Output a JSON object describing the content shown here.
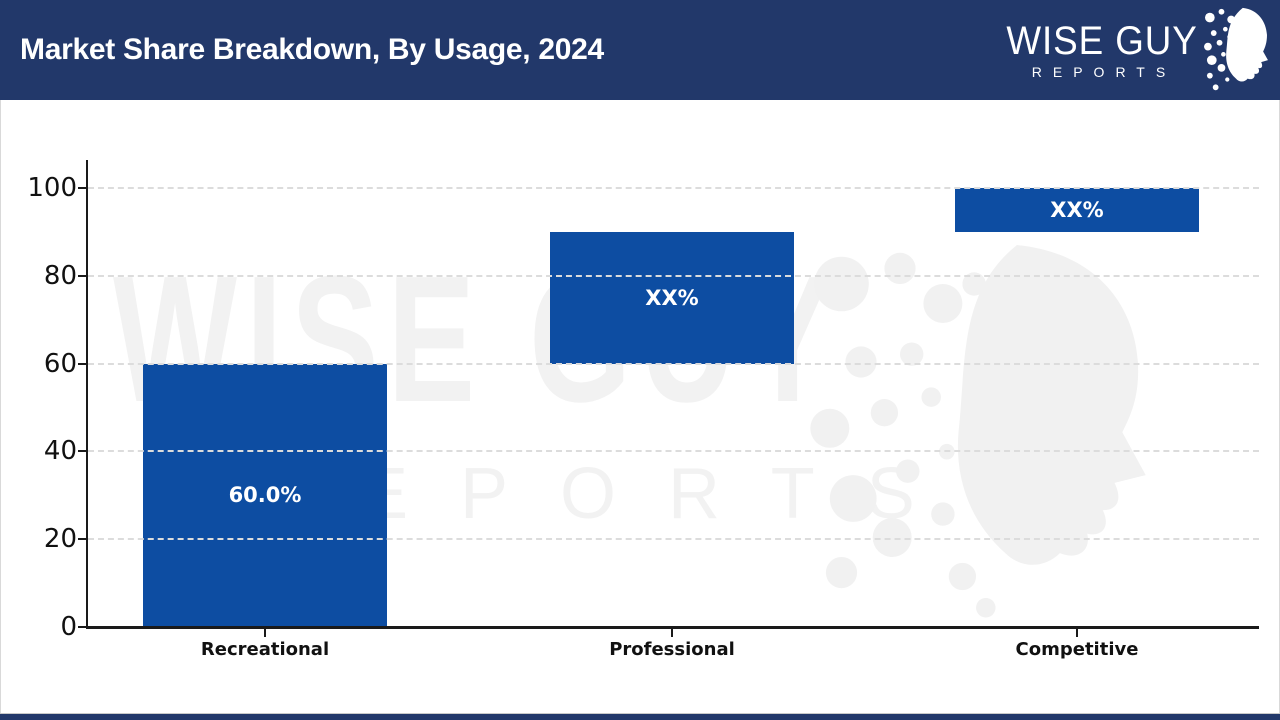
{
  "header": {
    "title": "Market Share Breakdown, By Usage, 2024",
    "logo": {
      "name": "WISE GUY",
      "subtitle": "REPORTS"
    }
  },
  "watermark": {
    "line1": "WISE GUY",
    "line2": "REPORTS"
  },
  "colors": {
    "header_bg": "#22386a",
    "bar": "#0d4da2",
    "bar_label": "#ffffff",
    "axis": "#1a1a1a",
    "grid": "#dcdcdc",
    "tick_text": "#111111",
    "watermark": "#f2f2f2"
  },
  "chart_data": {
    "type": "bar",
    "subtype": "waterfall",
    "title": "Market Share Breakdown, By Usage, 2024",
    "categories": [
      "Recreational",
      "Professional",
      "Competitive"
    ],
    "segments": [
      {
        "category": "Recreational",
        "start": 0,
        "end": 60,
        "label": "60.0%"
      },
      {
        "category": "Professional",
        "start": 60,
        "end": 90,
        "label": "XX%"
      },
      {
        "category": "Competitive",
        "start": 90,
        "end": 100,
        "label": "XX%"
      }
    ],
    "series": [
      {
        "name": "Market Share (%)",
        "values": [
          60,
          30,
          10
        ]
      }
    ],
    "yticks": [
      0,
      20,
      40,
      60,
      80,
      100
    ],
    "ylim": [
      0,
      106
    ],
    "xlabel": "",
    "ylabel": "",
    "legend": "none",
    "grid": {
      "axis": "y",
      "style": "dashed",
      "drawn_over_bars": true
    }
  }
}
